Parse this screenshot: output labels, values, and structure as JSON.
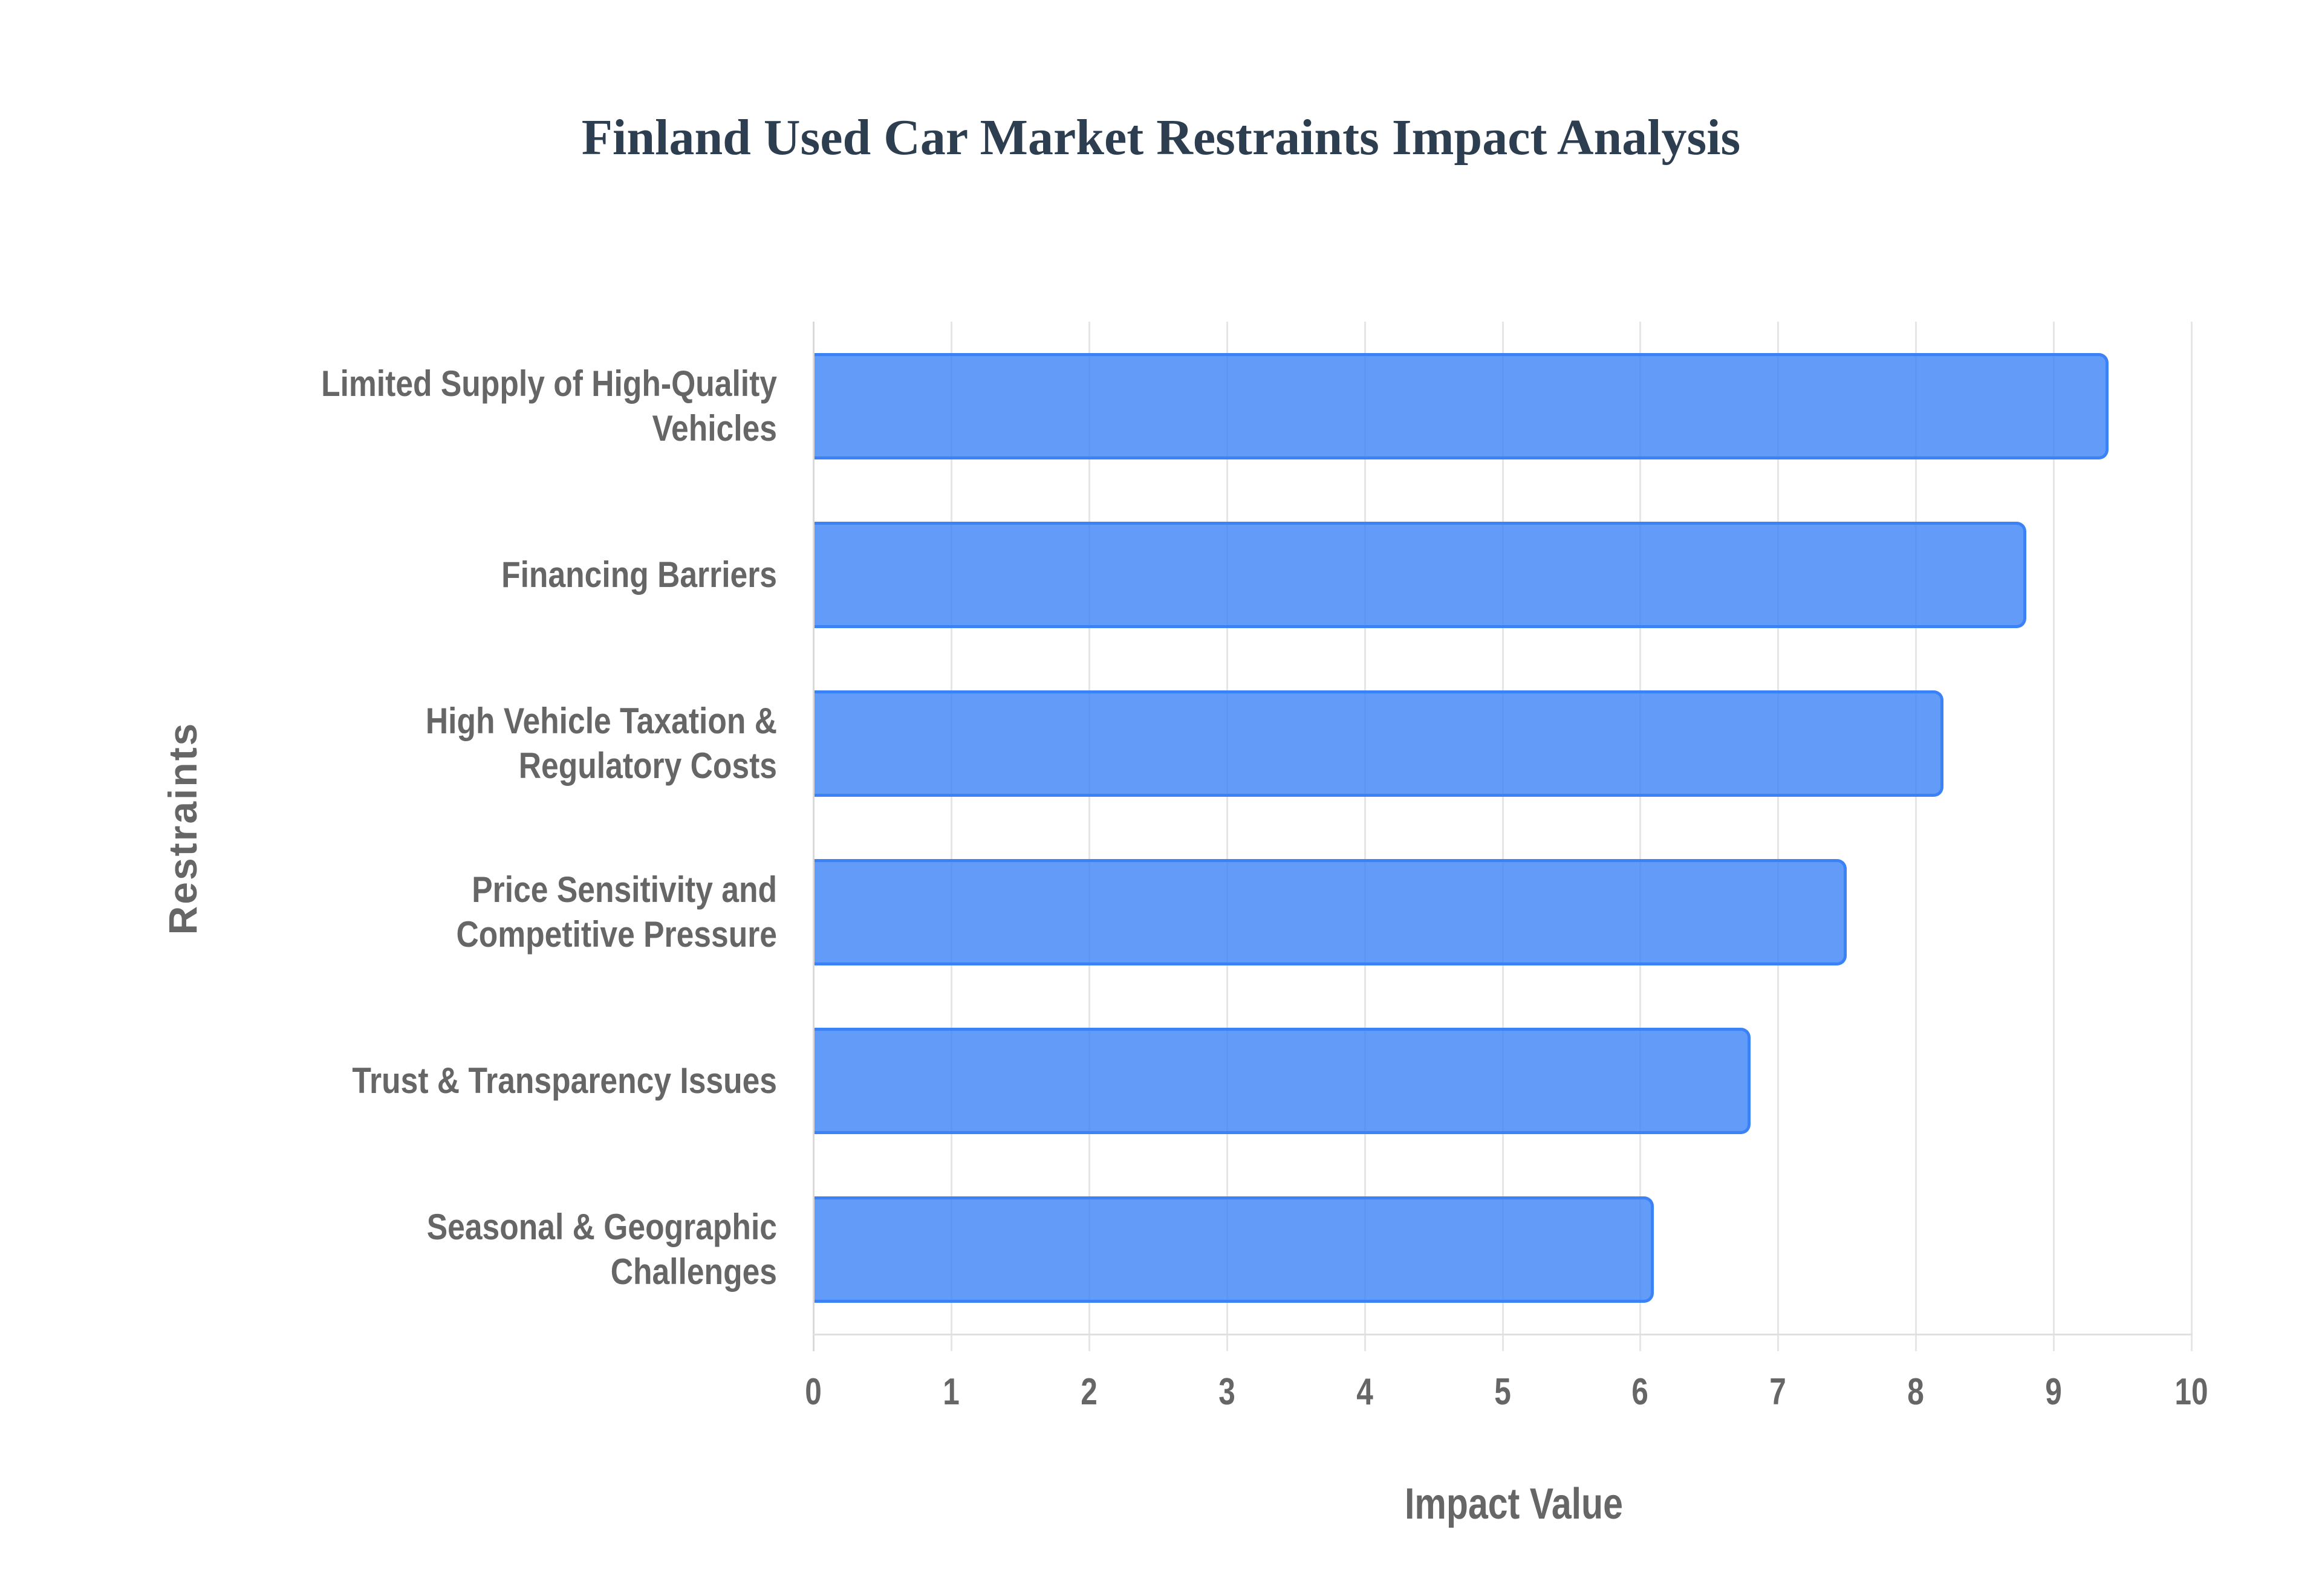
{
  "chart_data": {
    "type": "bar",
    "orientation": "horizontal",
    "title": "Finland Used Car Market Restraints Impact Analysis",
    "xlabel": "Impact Value",
    "ylabel": "Restraints",
    "categories": [
      "Limited Supply of High-Quality Vehicles",
      "Financing Barriers",
      "High Vehicle Taxation & Regulatory Costs",
      "Price Sensitivity and Competitive Pressure",
      "Trust & Transparency Issues",
      "Seasonal & Geographic Challenges"
    ],
    "values": [
      9.4,
      8.8,
      8.2,
      7.5,
      6.8,
      6.1
    ],
    "xlim": [
      0,
      10
    ],
    "x_ticks": [
      "0",
      "1",
      "2",
      "3",
      "4",
      "5",
      "6",
      "7",
      "8",
      "9",
      "10"
    ],
    "grid": true,
    "legend": "none",
    "colors": {
      "bar_fill": "#6199f5",
      "bar_border": "#3b82f6",
      "title": "#2c3e50",
      "axis_text": "#666666",
      "grid": "#e6e6e6"
    }
  },
  "labels": {
    "title": "Finland Used Car Market Restraints Impact Analysis",
    "x_axis_title": "Impact Value",
    "y_axis_title": "Restraints",
    "category_lines": [
      [
        "Limited Supply of High-Quality",
        "Vehicles"
      ],
      [
        "Financing Barriers"
      ],
      [
        "High Vehicle Taxation &",
        "Regulatory Costs"
      ],
      [
        "Price Sensitivity and",
        "Competitive Pressure"
      ],
      [
        "Trust & Transparency Issues"
      ],
      [
        "Seasonal & Geographic",
        "Challenges"
      ]
    ]
  }
}
